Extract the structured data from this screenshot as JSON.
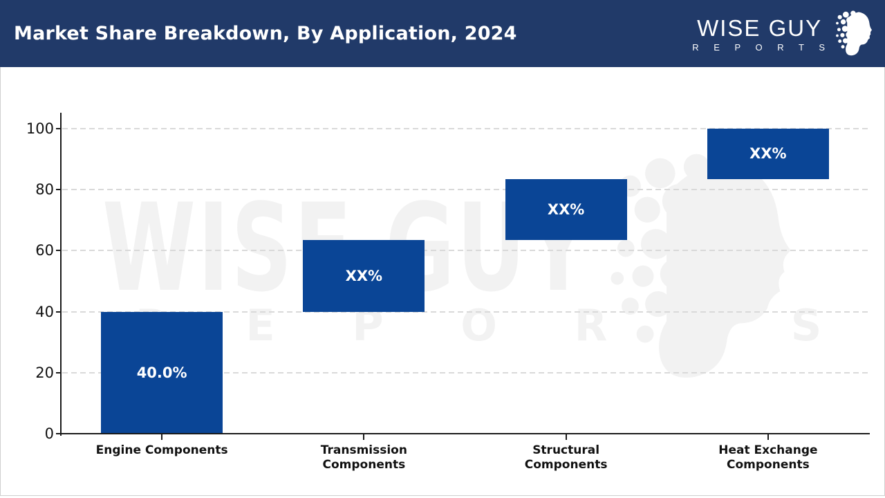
{
  "header": {
    "title": "Market Share Breakdown, By Application, 2024",
    "bg_color": "#213a69",
    "logo": {
      "line1": "WISE GUY",
      "line2": "R E P O R T S",
      "head_icon": "head-profile-dots-icon"
    }
  },
  "watermark": {
    "line1": "WISE GUY",
    "line2": "R E P O R T S"
  },
  "chart_data": {
    "type": "bar",
    "subtype": "waterfall",
    "title": "Market Share Breakdown, By Application, 2024",
    "categories": [
      "Engine Components",
      "Transmission\nComponents",
      "Structural\nComponents",
      "Heat Exchange\nComponents"
    ],
    "bars": [
      {
        "category": "Engine Components",
        "start": 0,
        "end": 40,
        "label": "40.0%"
      },
      {
        "category": "Transmission Components",
        "start": 40,
        "end": 63.5,
        "label": "XX%"
      },
      {
        "category": "Structural Components",
        "start": 63.5,
        "end": 83.5,
        "label": "XX%"
      },
      {
        "category": "Heat Exchange Components",
        "start": 83.5,
        "end": 100,
        "label": "XX%"
      }
    ],
    "y_ticks": [
      0,
      20,
      40,
      60,
      80,
      100
    ],
    "ylim": [
      0,
      105
    ],
    "xlabel": "",
    "ylabel": "",
    "bar_color": "#0a4596",
    "grid": "horizontal-dashed",
    "legend": "none"
  }
}
